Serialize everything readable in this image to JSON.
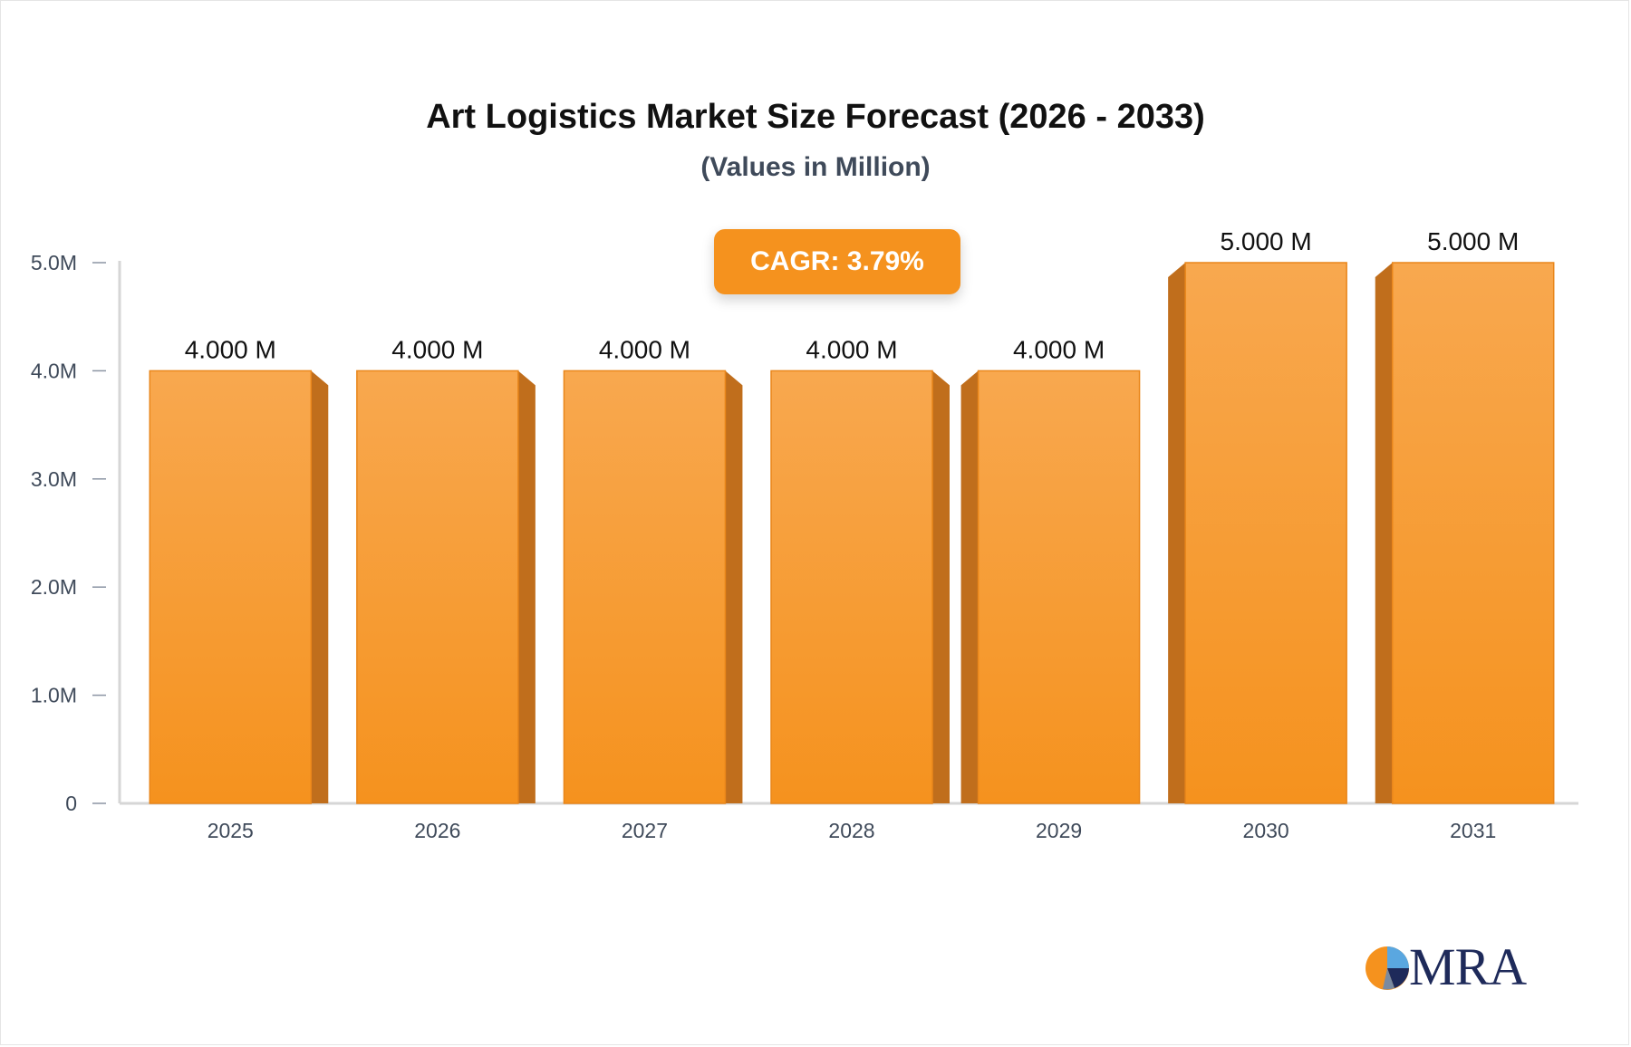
{
  "header": {
    "title": "Art Logistics Market Size Forecast (2026 - 2033)",
    "subtitle": "(Values in Million)"
  },
  "badge": {
    "cagr_label": "CAGR: 3.79%"
  },
  "logo": {
    "text": "MRA",
    "icon": "pie-logo-icon"
  },
  "colors": {
    "bar_front": "#f7a24a",
    "bar_front_bottom": "#f5921e",
    "bar_side": "#c06e1c",
    "axis": "#d6d6d6",
    "tick_text": "#3f4a5a",
    "badge": "#f5921e",
    "logo_navy": "#1e2a5a"
  },
  "chart_data": {
    "type": "bar",
    "title": "Art Logistics Market Size Forecast (2026 - 2033)",
    "subtitle": "(Values in Million)",
    "categories": [
      "2025",
      "2026",
      "2027",
      "2028",
      "2029",
      "2030",
      "2031"
    ],
    "values": [
      4.0,
      4.0,
      4.0,
      4.0,
      4.0,
      5.0,
      5.0
    ],
    "data_labels": [
      "4.000 M",
      "4.000 M",
      "4.000 M",
      "4.000 M",
      "4.000 M",
      "5.000 M",
      "5.000 M"
    ],
    "y_ticks": [
      0,
      1.0,
      2.0,
      3.0,
      4.0,
      5.0
    ],
    "y_tick_labels": [
      "0",
      "1.0M",
      "2.0M",
      "3.0M",
      "4.0M",
      "5.0M"
    ],
    "ylim": [
      0,
      5.0
    ],
    "xlabel": "",
    "ylabel": "",
    "grid": false,
    "legend": "none",
    "annotation": "CAGR: 3.79%"
  }
}
